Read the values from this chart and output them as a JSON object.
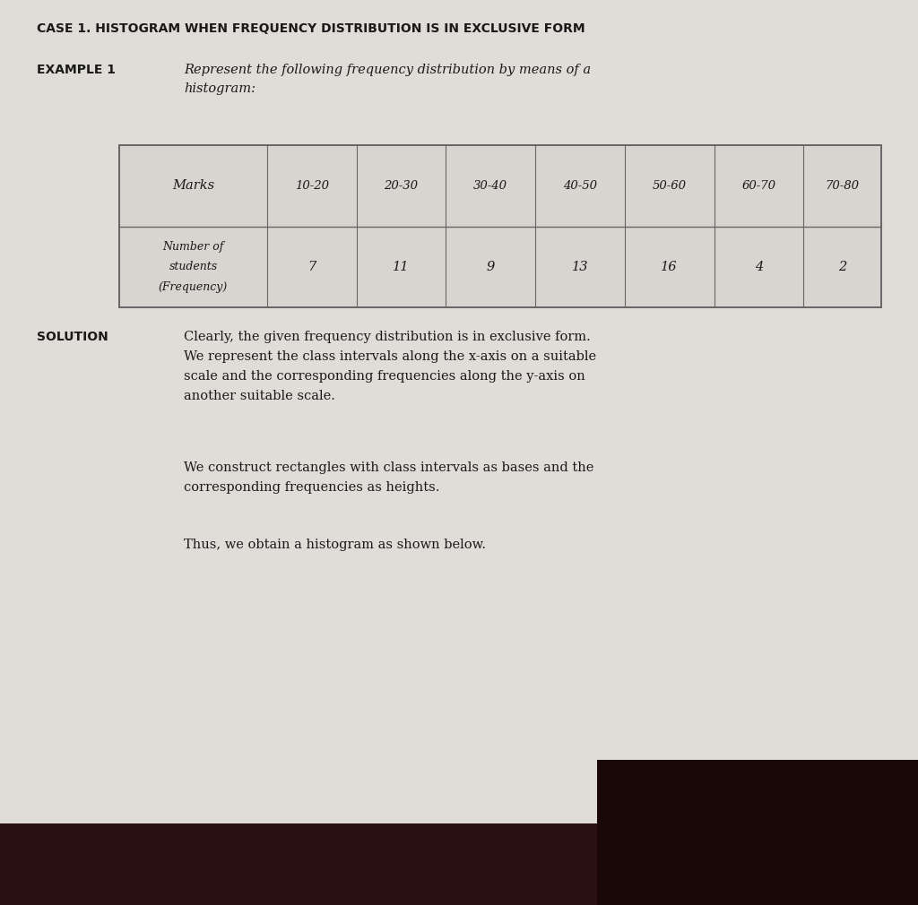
{
  "title": "CASE 1. HISTOGRAM WHEN FREQUENCY DISTRIBUTION IS IN EXCLUSIVE FORM",
  "example_label": "EXAMPLE 1",
  "example_text": "Represent the following frequency distribution by means of a\nhistogram:",
  "table_header_col0": "Marks",
  "table_marks": [
    "10-20",
    "20-30",
    "30-40",
    "40-50",
    "50-60",
    "60-70",
    "70-80"
  ],
  "table_row1_line1": "Number of",
  "table_row1_line2": "students",
  "table_row1_line3": "(Frequency)",
  "frequencies": [
    7,
    11,
    9,
    13,
    16,
    4,
    2
  ],
  "solution_label": "SOLUTION",
  "solution_text1": "Clearly, the given frequency distribution is in exclusive form.\nWe represent the class intervals along the x-axis on a suitable\nscale and the corresponding frequencies along the y-axis on\nanother suitable scale.",
  "solution_text2": "We construct rectangles with class intervals as bases and the\ncorresponding frequencies as heights.",
  "solution_text3": "Thus, we obtain a histogram as shown below.",
  "bg_color": "#e0ddd8",
  "table_bg": "#d8d4cf",
  "border_color": "#666666",
  "text_dark": "#1a1a1a",
  "text_gray": "#333333"
}
